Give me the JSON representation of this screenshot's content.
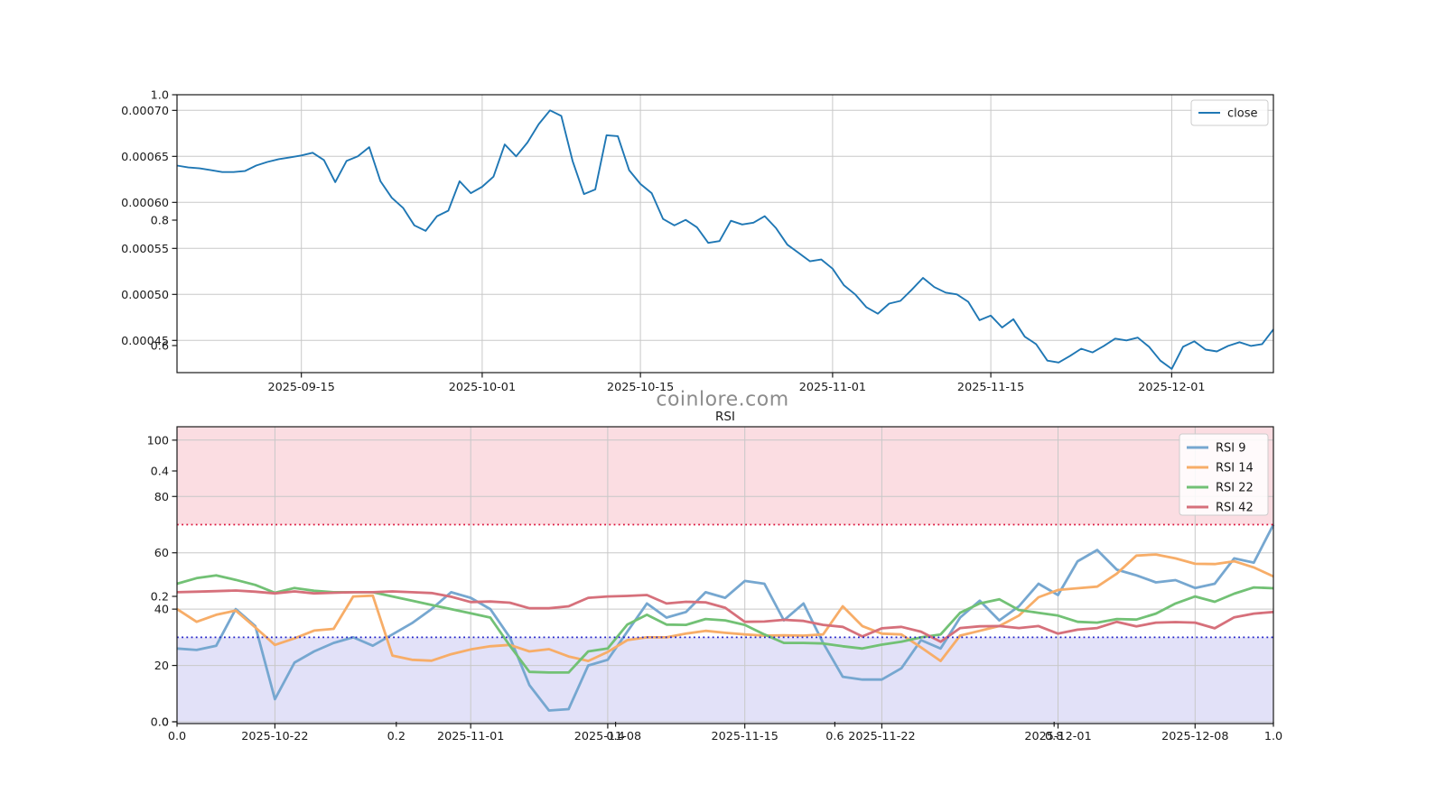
{
  "watermark": "coinlore.com",
  "colors": {
    "close": "#1f77b4",
    "rsi9": "#76a7d0",
    "rsi14": "#f7ad68",
    "rsi22": "#72c175",
    "rsi42": "#d6707b",
    "grid": "#c8c8c8",
    "spine": "#1a1a1a",
    "tick_label": "#1a1a1a",
    "band_overbought": "#fbdde2",
    "band_oversold": "#e2e1f8",
    "ref_upper": "#dc143c",
    "ref_lower": "#2020c8",
    "legend_border": "#cccccc",
    "watermark_color": "#8c8c8c"
  },
  "chart_data": [
    {
      "type": "line",
      "title": "",
      "legend": [
        "close"
      ],
      "legend_position": "upper right",
      "grid": true,
      "ylabel": "",
      "xlabel": "",
      "ylim_e5": [
        41.5,
        71.7
      ],
      "y_ticks": [
        {
          "v": 70,
          "label": "0.00070"
        },
        {
          "v": 65,
          "label": "0.00065"
        },
        {
          "v": 60,
          "label": "0.00060"
        },
        {
          "v": 55,
          "label": "0.00055"
        },
        {
          "v": 50,
          "label": "0.00050"
        },
        {
          "v": 45,
          "label": "0.00045"
        }
      ],
      "x_ticks": [
        {
          "d": 11,
          "label": "2025-09-15"
        },
        {
          "d": 27,
          "label": "2025-10-01"
        },
        {
          "d": 41,
          "label": "2025-10-15"
        },
        {
          "d": 58,
          "label": "2025-11-01"
        },
        {
          "d": 72,
          "label": "2025-11-15"
        },
        {
          "d": 88,
          "label": "2025-12-01"
        }
      ],
      "series": [
        {
          "name": "close",
          "color_key": "close",
          "values_e5": [
            64.0,
            63.8,
            63.7,
            63.5,
            63.3,
            63.3,
            63.4,
            64.0,
            64.4,
            64.7,
            64.9,
            65.1,
            65.4,
            64.6,
            62.2,
            64.5,
            65.0,
            66.0,
            62.3,
            60.5,
            59.4,
            57.5,
            56.9,
            58.5,
            59.1,
            62.3,
            61.0,
            61.7,
            62.8,
            66.3,
            65.0,
            66.5,
            68.5,
            70.0,
            69.4,
            64.5,
            60.9,
            61.4,
            67.3,
            67.2,
            63.5,
            62.0,
            61.0,
            58.2,
            57.5,
            58.1,
            57.3,
            55.6,
            55.8,
            58.0,
            57.6,
            57.8,
            58.5,
            57.2,
            55.4,
            54.5,
            53.6,
            53.8,
            52.8,
            51.0,
            50.0,
            48.6,
            47.9,
            49.0,
            49.3,
            50.5,
            51.8,
            50.8,
            50.2,
            50.0,
            49.2,
            47.2,
            47.7,
            46.4,
            47.3,
            45.4,
            44.6,
            42.8,
            42.6,
            43.3,
            44.1,
            43.7,
            44.4,
            45.2,
            45.0,
            45.3,
            44.3,
            42.8,
            41.9,
            44.3,
            44.9,
            44.0,
            43.8,
            44.4,
            44.8,
            44.4,
            44.6,
            46.2
          ]
        }
      ]
    },
    {
      "type": "line",
      "title": "RSI",
      "legend": [
        "RSI 9",
        "RSI 14",
        "RSI 22",
        "RSI 42"
      ],
      "legend_position": "upper right",
      "grid": true,
      "ylim": [
        -0.6,
        105
      ],
      "y_ticks": [
        {
          "v": 100,
          "label": "100"
        },
        {
          "v": 80,
          "label": "80"
        },
        {
          "v": 60,
          "label": "60"
        },
        {
          "v": 40,
          "label": "40"
        },
        {
          "v": 20,
          "label": "20"
        },
        {
          "v": 0,
          "label": "0"
        }
      ],
      "x_ticks": [
        {
          "d": 5,
          "label": "2025-10-22"
        },
        {
          "d": 15,
          "label": "2025-11-01"
        },
        {
          "d": 22,
          "label": "2025-11-08"
        },
        {
          "d": 29,
          "label": "2025-11-15"
        },
        {
          "d": 36,
          "label": "2025-11-22"
        },
        {
          "d": 45,
          "label": "2025-12-01"
        },
        {
          "d": 52,
          "label": "2025-12-08"
        }
      ],
      "bands": [
        {
          "name": "overbought",
          "from": 70,
          "to": 105,
          "color_key": "band_overbought"
        },
        {
          "name": "oversold",
          "from": -0.6,
          "to": 30,
          "color_key": "band_oversold"
        }
      ],
      "reference_lines": [
        {
          "value": 70,
          "style": "dotted",
          "color_key": "ref_upper"
        },
        {
          "value": 30,
          "style": "dotted",
          "color_key": "ref_lower"
        }
      ],
      "series": [
        {
          "name": "RSI 9",
          "color_key": "rsi9",
          "values": [
            26,
            25.5,
            27,
            40,
            34,
            8,
            21,
            25,
            28,
            30,
            27,
            31,
            35,
            40,
            46,
            44,
            40,
            30,
            13,
            4,
            4.5,
            20,
            22,
            32,
            42,
            37,
            39,
            46,
            44,
            50,
            49,
            36,
            42,
            28,
            16,
            15,
            15,
            19,
            29,
            26,
            37,
            43,
            36,
            41,
            49,
            45,
            57,
            61,
            54,
            52,
            49.5,
            50.3,
            47.5,
            49,
            58,
            56.5,
            70
          ]
        },
        {
          "name": "RSI 14",
          "color_key": "rsi14",
          "values": [
            40,
            35.5,
            38,
            39.5,
            33.5,
            27.3,
            29.6,
            32.4,
            33,
            44.5,
            44.8,
            23.5,
            22,
            21.7,
            24,
            25.7,
            26.8,
            27.3,
            25,
            25.8,
            23.2,
            21.6,
            24.8,
            29,
            30,
            30,
            31.3,
            32.3,
            31.6,
            31,
            30.6,
            30.7,
            30.6,
            31,
            41,
            34,
            31.3,
            31,
            26.4,
            21.6,
            30.6,
            32.3,
            34,
            37.7,
            44.2,
            46.8,
            47.4,
            48,
            52.6,
            59,
            59.4,
            58,
            56.1,
            56,
            57,
            54.8,
            51.6
          ]
        },
        {
          "name": "RSI 22",
          "color_key": "rsi22",
          "values": [
            49,
            51,
            52,
            50.4,
            48.6,
            45.8,
            47.5,
            46.5,
            46,
            46,
            46,
            44.5,
            43,
            41.5,
            40,
            38.5,
            37,
            27,
            17.7,
            17.5,
            17.5,
            25,
            26,
            34.5,
            38,
            34.5,
            34.4,
            36.5,
            36,
            34.4,
            31,
            28,
            28,
            27.8,
            26.8,
            26,
            27.4,
            28.4,
            30,
            31,
            38.7,
            42,
            43.5,
            39.7,
            38.7,
            37.7,
            35.5,
            35.2,
            36.5,
            36.3,
            38.4,
            42,
            44.5,
            42.6,
            45.5,
            47.7,
            47.4
          ]
        },
        {
          "name": "RSI 42",
          "color_key": "rsi42",
          "values": [
            46,
            46.2,
            46.4,
            46.6,
            46.2,
            45.6,
            46.3,
            45.6,
            45.8,
            46,
            46,
            46.3,
            46,
            45.7,
            44.4,
            42.5,
            42.7,
            42.3,
            40.3,
            40.3,
            41,
            44,
            44.5,
            44.7,
            45,
            42,
            42.6,
            42.4,
            40.5,
            35.5,
            35.6,
            36.2,
            35.8,
            34.4,
            33.7,
            30.3,
            33.2,
            33.7,
            32,
            28.4,
            33.3,
            33.9,
            34,
            33.3,
            34,
            31.3,
            32.7,
            33.3,
            35.5,
            33.9,
            35.2,
            35.4,
            35.2,
            33.2,
            37.1,
            38.4,
            39
          ]
        }
      ]
    }
  ],
  "overlay_axis": {
    "x_ticks": [
      {
        "f": 0.0,
        "label": "0.0"
      },
      {
        "f": 0.2,
        "label": "0.2"
      },
      {
        "f": 0.4,
        "label": "0.4"
      },
      {
        "f": 0.6,
        "label": "0.6"
      },
      {
        "f": 0.8,
        "label": "0.8"
      },
      {
        "f": 1.0,
        "label": "1.0"
      }
    ],
    "y_ticks": [
      {
        "f": 1.0,
        "label": "1.0"
      },
      {
        "f": 0.8,
        "label": "0.8"
      },
      {
        "f": 0.6,
        "label": "0.6"
      },
      {
        "f": 0.4,
        "label": "0.4"
      },
      {
        "f": 0.2,
        "label": "0.2"
      },
      {
        "f": 0.0,
        "label": "0.0"
      }
    ]
  }
}
